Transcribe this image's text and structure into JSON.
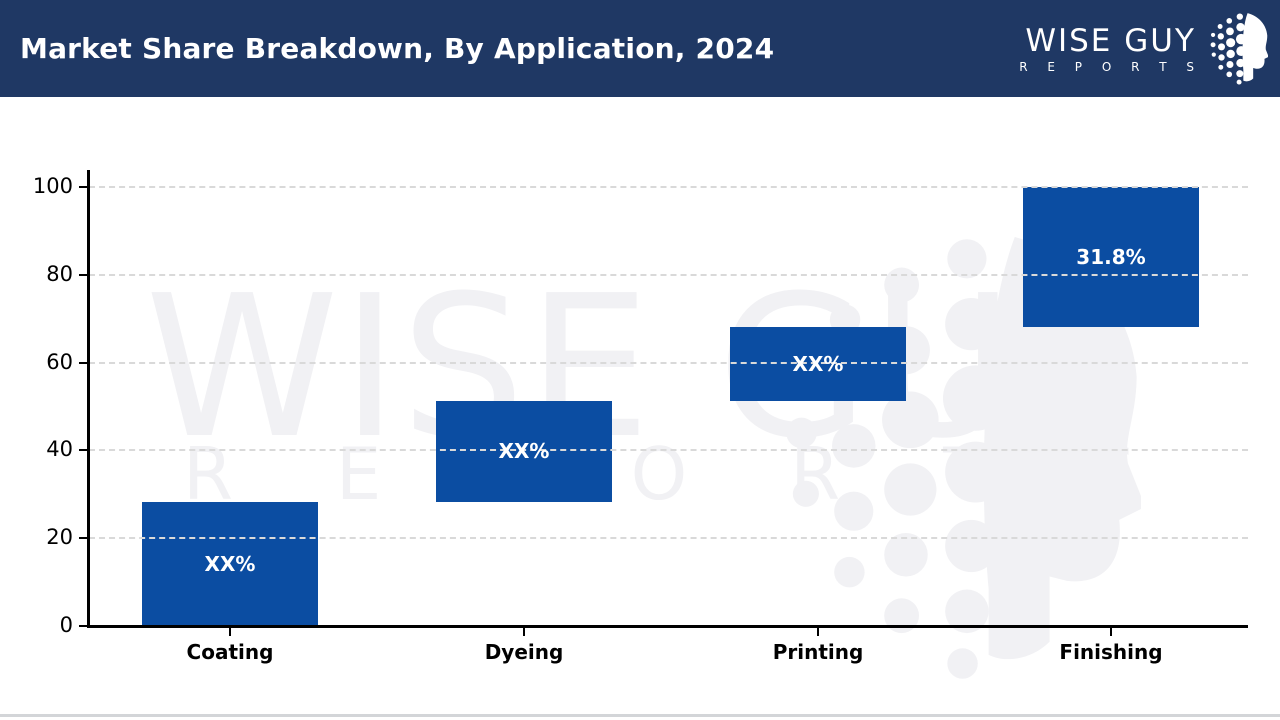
{
  "header": {
    "title": "Market Share Breakdown, By Application, 2024",
    "bg_color": "#1f3864",
    "logo": {
      "brand_line1": "WISE GUY",
      "brand_line2": "R E P O R T S"
    }
  },
  "watermark": {
    "line1": "WISE GUY",
    "line2": "R E P O R T S"
  },
  "chart_data": {
    "type": "waterfall",
    "title": "Market Share Breakdown, By Application, 2024",
    "categories": [
      "Coating",
      "Dyeing",
      "Printing",
      "Finishing"
    ],
    "segments": [
      {
        "category": "Coating",
        "start": 0,
        "end": 28.2,
        "height": 28.2,
        "label": "XX%"
      },
      {
        "category": "Dyeing",
        "start": 28.2,
        "end": 51.3,
        "height": 23.1,
        "label": "XX%"
      },
      {
        "category": "Printing",
        "start": 51.3,
        "end": 68.2,
        "height": 16.9,
        "label": "XX%"
      },
      {
        "category": "Finishing",
        "start": 68.2,
        "end": 100,
        "height": 31.8,
        "label": "31.8%"
      }
    ],
    "yticks": [
      0,
      20,
      40,
      60,
      80,
      100
    ],
    "ylim": [
      0,
      104
    ],
    "xlabel": "",
    "ylabel": "",
    "legend": null,
    "grid": {
      "axis": "y",
      "style": "dashed",
      "color": "#d9d9d9",
      "above_bars": true
    },
    "bar_color": "#0b4da2",
    "bar_label_color": "#ffffff",
    "axis_color": "#000000"
  },
  "colors": {
    "header_bg": "#1f3864",
    "watermark": "#f1f1f4",
    "bottom_rule": "#d3d5d8",
    "page_bg": "#ffffff"
  }
}
